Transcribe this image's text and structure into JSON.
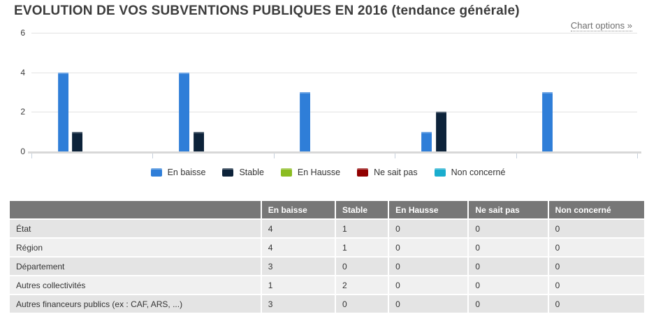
{
  "title": "EVOLUTION DE VOS SUBVENTIONS PUBLIQUES EN 2016 (tendance générale)",
  "chart_options_label": "Chart options »",
  "colors": {
    "en_baisse": "#2f7ed8",
    "stable": "#0d233a",
    "en_hausse": "#8bbc21",
    "ne_sait_pas": "#910000",
    "non_concerne": "#1aadce",
    "gridline": "#e2e2e2",
    "axis_line": "#d8d8d8",
    "table_header_bg": "#777777",
    "row_odd_bg": "#e4e4e4",
    "row_even_bg": "#f0f0f0"
  },
  "chart_data": {
    "type": "bar",
    "categories": [
      "État",
      "Région",
      "Département",
      "Autres collectivités",
      "Autres financeurs publics (ex : CAF, ARS, ...)"
    ],
    "series": [
      {
        "name": "En baisse",
        "color": "#2f7ed8",
        "values": [
          4,
          4,
          3,
          1,
          3
        ]
      },
      {
        "name": "Stable",
        "color": "#0d233a",
        "values": [
          1,
          1,
          0,
          2,
          0
        ]
      },
      {
        "name": "En Hausse",
        "color": "#8bbc21",
        "values": [
          0,
          0,
          0,
          0,
          0
        ]
      },
      {
        "name": "Ne sait pas",
        "color": "#910000",
        "values": [
          0,
          0,
          0,
          0,
          0
        ]
      },
      {
        "name": "Non concerné",
        "color": "#1aadce",
        "values": [
          0,
          0,
          0,
          0,
          0
        ]
      }
    ],
    "title": "EVOLUTION DE VOS SUBVENTIONS PUBLIQUES EN 2016 (tendance générale)",
    "xlabel": "",
    "ylabel": "",
    "ylim": [
      0,
      6
    ],
    "yticks": [
      0,
      2,
      4,
      6
    ],
    "grid": true,
    "legend_position": "bottom",
    "x_tick_labels_visible": false
  },
  "table": {
    "columns": [
      "",
      "En baisse",
      "Stable",
      "En Hausse",
      "Ne sait pas",
      "Non concerné"
    ],
    "rows": [
      {
        "label": "État",
        "values": [
          4,
          1,
          0,
          0,
          0
        ]
      },
      {
        "label": "Région",
        "values": [
          4,
          1,
          0,
          0,
          0
        ]
      },
      {
        "label": "Département",
        "values": [
          3,
          0,
          0,
          0,
          0
        ]
      },
      {
        "label": "Autres collectivités",
        "values": [
          1,
          2,
          0,
          0,
          0
        ]
      },
      {
        "label": "Autres financeurs publics (ex : CAF, ARS, ...)",
        "values": [
          3,
          0,
          0,
          0,
          0
        ]
      }
    ]
  }
}
